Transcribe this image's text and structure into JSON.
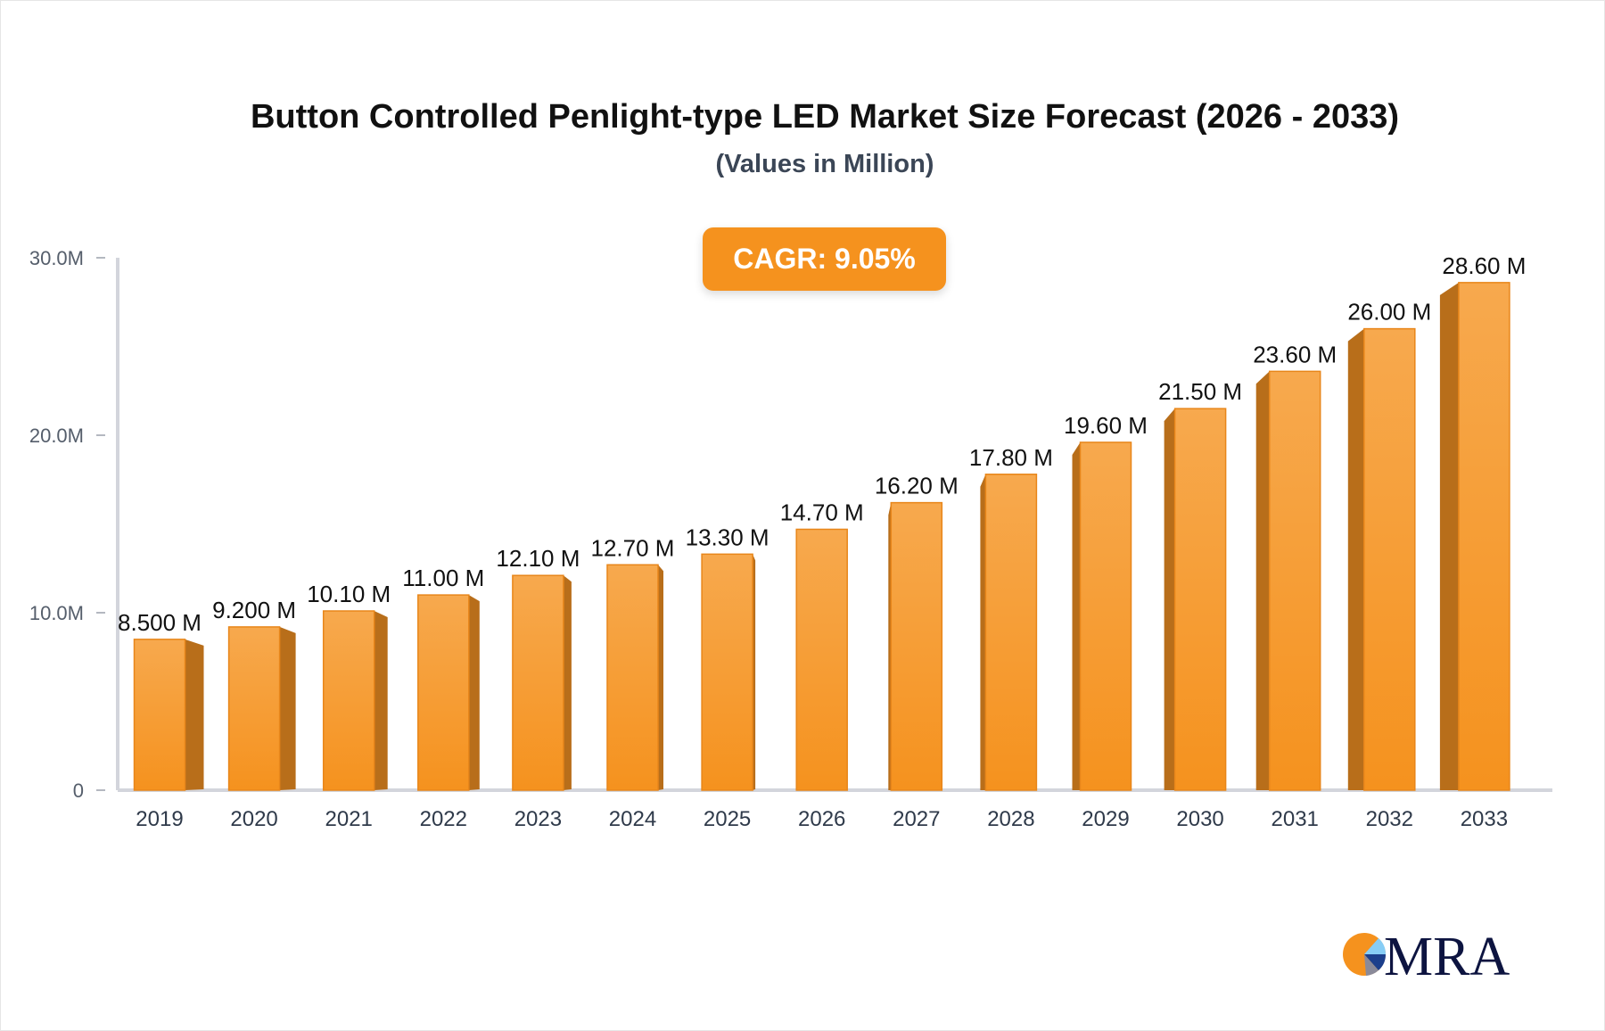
{
  "title": "Button Controlled Penlight-type LED Market Size Forecast (2026 - 2033)",
  "subtitle": "(Values in Million)",
  "cagr_label": "CAGR: 9.05%",
  "logo_text": "MRA",
  "colors": {
    "bar": "#f5921e",
    "bar_top": "#f7a94e",
    "bar_side": "#b86e1a",
    "axis": "#d3d5dc",
    "badge": "#f5921e",
    "logo_navy": "#0d1440"
  },
  "chart_data": {
    "type": "bar",
    "title": "Button Controlled Penlight-type LED Market Size Forecast (2026 - 2033)",
    "subtitle": "(Values in Million)",
    "categories": [
      "2019",
      "2020",
      "2021",
      "2022",
      "2023",
      "2024",
      "2025",
      "2026",
      "2027",
      "2028",
      "2029",
      "2030",
      "2031",
      "2032",
      "2033"
    ],
    "values": [
      8.5,
      9.2,
      10.1,
      11.0,
      12.1,
      12.7,
      13.3,
      14.7,
      16.2,
      17.8,
      19.6,
      21.5,
      23.6,
      26.0,
      28.6
    ],
    "data_labels": [
      "8.500 M",
      "9.200 M",
      "10.10 M",
      "11.00 M",
      "12.10 M",
      "12.70 M",
      "13.30 M",
      "14.70 M",
      "16.20 M",
      "17.80 M",
      "19.60 M",
      "21.50 M",
      "23.60 M",
      "26.00 M",
      "28.60 M"
    ],
    "y_ticks": [
      0,
      10,
      20,
      30
    ],
    "y_tick_labels": [
      "0",
      "10.0M",
      "20.0M",
      "30.0M"
    ],
    "ylim": [
      0,
      30
    ],
    "xlabel": "",
    "ylabel": "",
    "grid": false,
    "legend": "none"
  }
}
